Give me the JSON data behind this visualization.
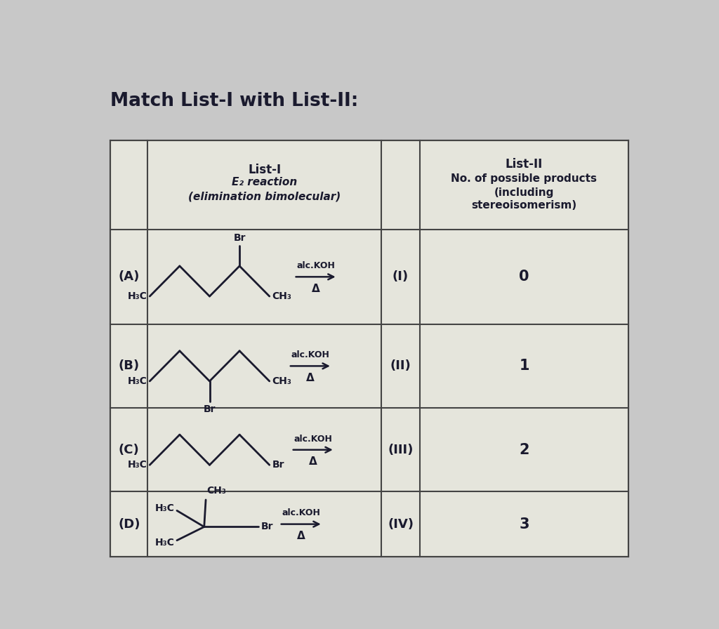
{
  "title": "Match List-I with List-II:",
  "bg_color": "#c8c8c8",
  "table_bg": "#e8e8e0",
  "header_list1_line1": "List-I",
  "header_list1_line2": "E₂ reaction",
  "header_list1_line3": "(elimination bimolecular)",
  "header_list2_line1": "List-II",
  "header_list2_line2": "No. of possible products",
  "header_list2_line3": "(including",
  "header_list2_line4": "stereoisomerism)",
  "rows": [
    {
      "label": "(A)",
      "roman": "(I)",
      "value": "0"
    },
    {
      "label": "(B)",
      "roman": "(II)",
      "value": "1"
    },
    {
      "label": "(C)",
      "roman": "(III)",
      "value": "2"
    },
    {
      "label": "(D)",
      "roman": "(IV)",
      "value": "3"
    }
  ],
  "text_color": "#1a1a2e",
  "line_color": "#444444",
  "bond_color": "#1a1a2e",
  "arrow_color": "#1a1a2e"
}
